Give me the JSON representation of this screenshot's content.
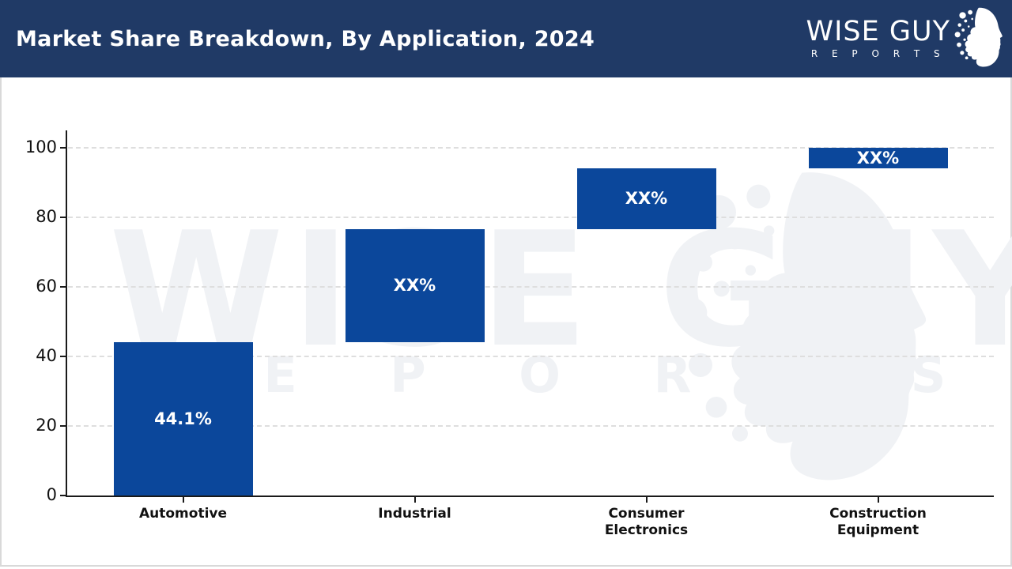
{
  "header": {
    "title": "Market Share Breakdown, By Application, 2024",
    "background_color": "#203a66",
    "logo": {
      "wordmark": "WISE GUY",
      "subtext": "R E P O R T S"
    }
  },
  "watermark": {
    "wordmark": "WISE GUY",
    "subtext": "R E P O R T S"
  },
  "chart_data": {
    "type": "bar",
    "variant": "waterfall",
    "title": "Market Share Breakdown, By Application, 2024",
    "xlabel": "",
    "ylabel": "",
    "ylim": [
      0,
      105
    ],
    "yticks": [
      0,
      20,
      40,
      60,
      80,
      100
    ],
    "grid": "horizontal-dashed",
    "grid_color": "#dedede",
    "bar_color": "#0b479b",
    "bar_label_color": "#ffffff",
    "axis_color": "#1a1a1a",
    "categories": [
      "Automotive",
      "Industrial",
      "Consumer Electronics",
      "Construction Equipment"
    ],
    "segments": [
      {
        "category_lines": [
          "Automotive"
        ],
        "start": 0,
        "end": 44.1,
        "value": 44.1,
        "label": "44.1%"
      },
      {
        "category_lines": [
          "Industrial"
        ],
        "start": 44.1,
        "end": 76.6,
        "value": 32.5,
        "label": "XX%"
      },
      {
        "category_lines": [
          "Consumer",
          "Electronics"
        ],
        "start": 76.6,
        "end": 94.1,
        "value": 17.5,
        "label": "XX%"
      },
      {
        "category_lines": [
          "Construction",
          "Equipment"
        ],
        "start": 94.1,
        "end": 100,
        "value": 5.9,
        "label": "XX%"
      }
    ]
  }
}
